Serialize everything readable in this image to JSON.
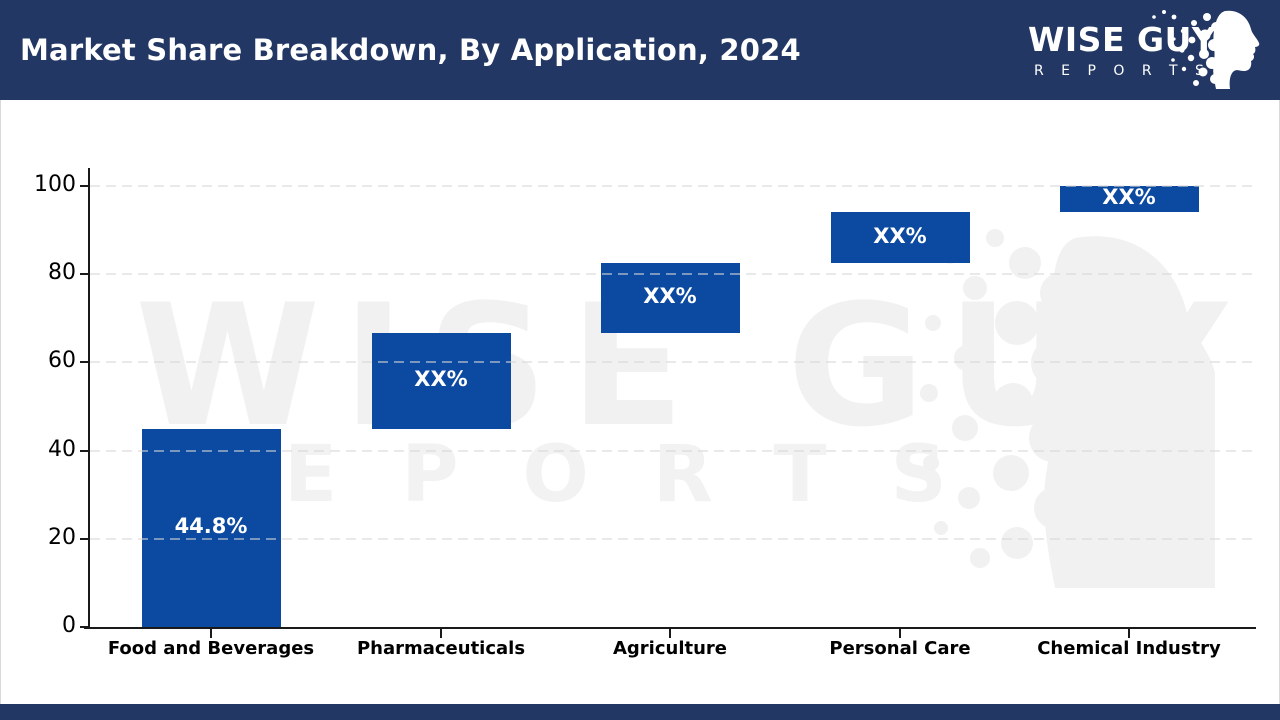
{
  "colors": {
    "header_navy": "#223764",
    "bar_blue": "#0b4aa0",
    "bar_label_white": "#ffffff",
    "watermark_gray": "#f1f1f1",
    "grid_gray": "#e3e3e3"
  },
  "header": {
    "title": "Market Share Breakdown, By Application, 2024",
    "logo": {
      "line1": "WISE GUY",
      "line2": "R E P O R T S"
    }
  },
  "watermark": {
    "line1": "WISE GUY",
    "line2": "REPORTS"
  },
  "chart_data": {
    "type": "bar",
    "subtype": "waterfall",
    "title": "Market Share Breakdown, By Application, 2024",
    "categories": [
      "Food and Beverages",
      "Pharmaceuticals",
      "Agriculture",
      "Personal Care",
      "Chemical Industry"
    ],
    "series": [
      {
        "name": "Market Share %",
        "segments": [
          {
            "category": "Food and Beverages",
            "start": 0,
            "end": 44.8,
            "label": "44.8%"
          },
          {
            "category": "Pharmaceuticals",
            "start": 44.8,
            "end": 66.7,
            "label": "XX%"
          },
          {
            "category": "Agriculture",
            "start": 66.7,
            "end": 82.5,
            "label": "XX%"
          },
          {
            "category": "Personal Care",
            "start": 82.5,
            "end": 94.1,
            "label": "XX%"
          },
          {
            "category": "Chemical Industry",
            "start": 94.1,
            "end": 100,
            "label": "XX%"
          }
        ]
      }
    ],
    "xlabel": "",
    "ylabel": "",
    "yticks": [
      0,
      20,
      40,
      60,
      80,
      100
    ],
    "ylim": [
      0,
      104
    ],
    "grid": "horizontal-dashed",
    "legend": "none"
  }
}
